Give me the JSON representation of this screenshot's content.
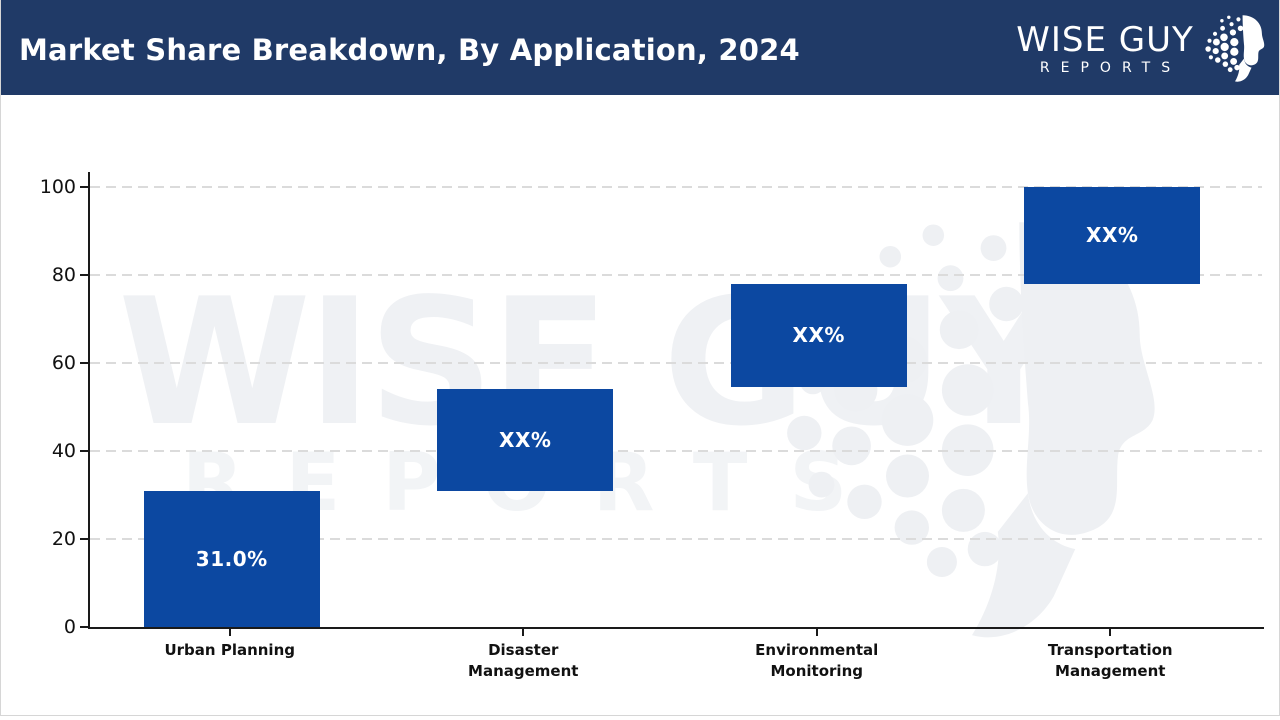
{
  "header": {
    "title": "Market Share Breakdown, By Application, 2024",
    "logo": {
      "line1": "WISE GUY",
      "line2": "REPORTS"
    }
  },
  "watermark": {
    "line1": "WISE GUY",
    "line2": "REPORTS"
  },
  "chart_data": {
    "type": "bar",
    "subtype": "floating-segment-waterfall",
    "title": "Market Share Breakdown, By Application, 2024",
    "categories": [
      "Urban Planning",
      "Disaster\nManagement",
      "Environmental\nMonitoring",
      "Transportation\nManagement"
    ],
    "segments": [
      {
        "category": "Urban Planning",
        "start": 0,
        "end": 31,
        "label": "31.0%"
      },
      {
        "category": "Disaster Management",
        "start": 31,
        "end": 54,
        "label": "XX%"
      },
      {
        "category": "Environmental Monitoring",
        "start": 54.5,
        "end": 78,
        "label": "XX%"
      },
      {
        "category": "Transportation Management",
        "start": 78,
        "end": 100,
        "label": "XX%"
      }
    ],
    "series": [
      {
        "name": "Market Share",
        "values": [
          31,
          23,
          23.5,
          22
        ]
      }
    ],
    "xlabel": "",
    "ylabel": "",
    "ylim": [
      0,
      100
    ],
    "yticks": [
      0,
      20,
      40,
      60,
      80,
      100
    ],
    "grid": "horizontal-dashed",
    "legend": "none",
    "bar_color": "#0C48A1",
    "bar_label_color": "#ffffff",
    "header_color": "#203A67",
    "watermark_color": "#eff1f4",
    "axis_color": "#1a1a1a",
    "gridline_color": "#dbdbdb"
  }
}
